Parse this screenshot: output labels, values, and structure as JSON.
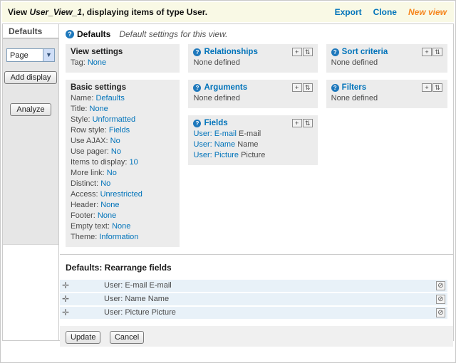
{
  "topbar": {
    "title_prefix": "View",
    "view_name": "User_View_1",
    "title_suffix": ", displaying items of type User.",
    "links": {
      "export": "Export",
      "clone": "Clone",
      "new_view": "New view"
    }
  },
  "sidebar": {
    "active_tab": "Defaults",
    "display_select_value": "Page",
    "add_display_button": "Add display",
    "analyze_button": "Analyze"
  },
  "display_header": {
    "title": "Defaults",
    "description": "Default settings for this view."
  },
  "boxes": {
    "view_settings": {
      "title": "View settings",
      "items": [
        {
          "label": "Tag:",
          "value": "None"
        }
      ]
    },
    "basic_settings": {
      "title": "Basic settings",
      "items": [
        {
          "label": "Name:",
          "value": "Defaults"
        },
        {
          "label": "Title:",
          "value": "None"
        },
        {
          "label": "Style:",
          "value": "Unformatted"
        },
        {
          "label": "Row style:",
          "value": "Fields"
        },
        {
          "label": "Use AJAX:",
          "value": "No"
        },
        {
          "label": "Use pager:",
          "value": "No"
        },
        {
          "label": "Items to display:",
          "value": "10"
        },
        {
          "label": "More link:",
          "value": "No"
        },
        {
          "label": "Distinct:",
          "value": "No"
        },
        {
          "label": "Access:",
          "value": "Unrestricted"
        },
        {
          "label": "Header:",
          "value": "None"
        },
        {
          "label": "Footer:",
          "value": "None"
        },
        {
          "label": "Empty text:",
          "value": "None"
        },
        {
          "label": "Theme:",
          "value": "Information"
        }
      ]
    },
    "relationships": {
      "title": "Relationships",
      "empty": "None defined"
    },
    "arguments": {
      "title": "Arguments",
      "empty": "None defined"
    },
    "fields": {
      "title": "Fields",
      "items": [
        {
          "link": "User: E-mail",
          "suffix": "E-mail"
        },
        {
          "link": "User: Name",
          "suffix": "Name"
        },
        {
          "link": "User: Picture",
          "suffix": "Picture"
        }
      ]
    },
    "sort_criteria": {
      "title": "Sort criteria",
      "empty": "None defined"
    },
    "filters": {
      "title": "Filters",
      "empty": "None defined"
    }
  },
  "rearrange": {
    "title": "Defaults: Rearrange fields",
    "rows": [
      {
        "label": "User: E-mail E-mail"
      },
      {
        "label": "User: Name Name"
      },
      {
        "label": "User: Picture Picture"
      }
    ],
    "update_button": "Update",
    "cancel_button": "Cancel"
  },
  "icons": {
    "help": "?",
    "add": "+",
    "rearrange": "⇅",
    "drag": "✛",
    "remove": "⊘",
    "select_arrow": "▼"
  },
  "colors": {
    "link_blue": "#0073ba",
    "accent_orange": "#f6861f",
    "topbar_bg": "#f9f9e5",
    "box_bg": "#ececec",
    "row_blue": "#e8f1f8",
    "sidebar_bg": "#e6e6e6"
  }
}
